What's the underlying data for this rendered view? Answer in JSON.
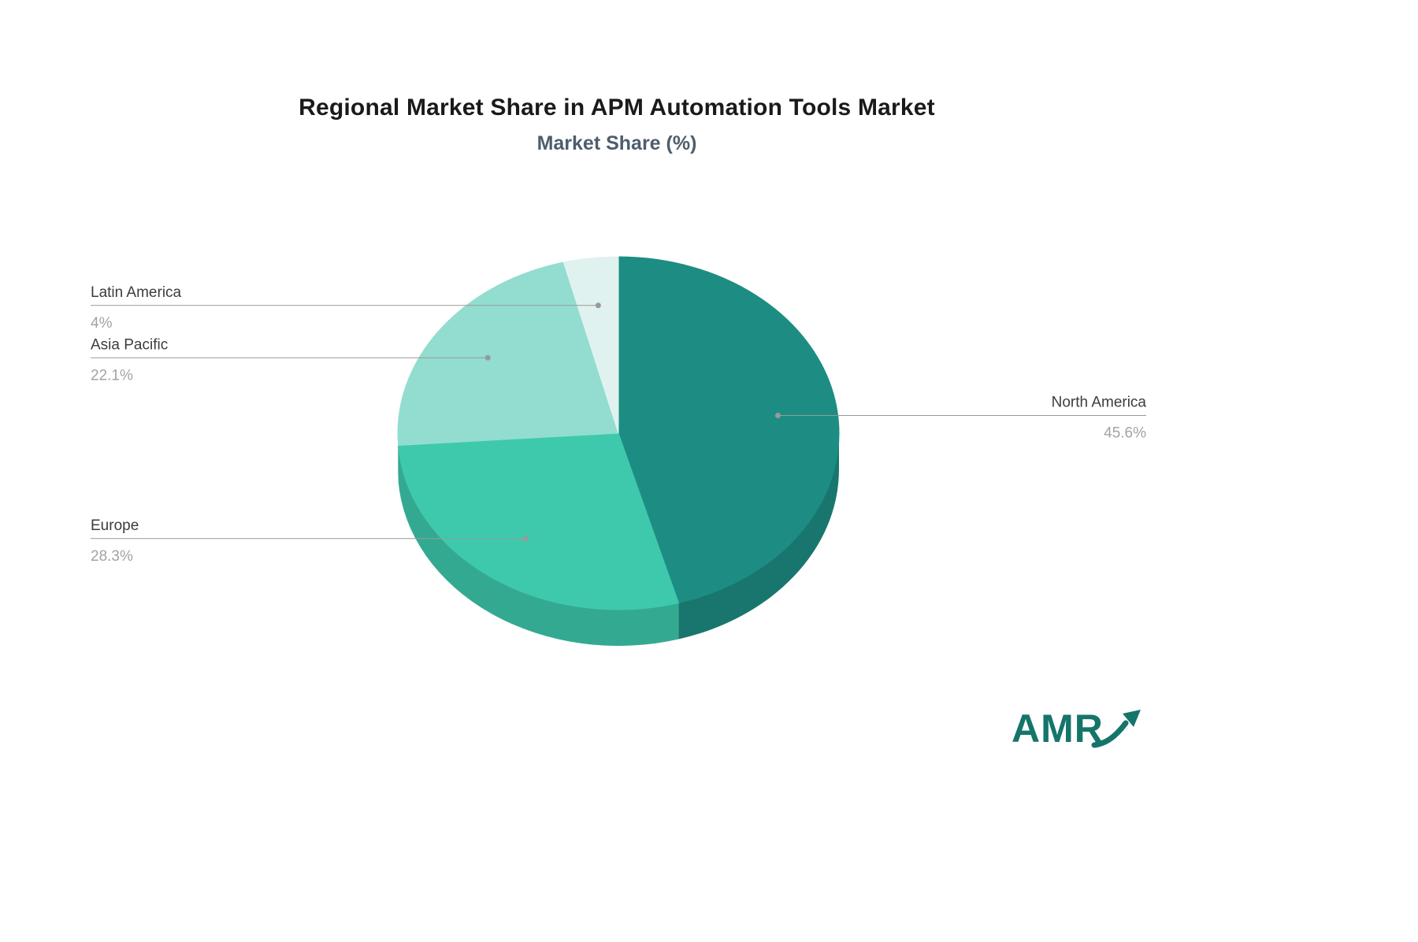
{
  "chart_data": {
    "type": "pie",
    "title": "Regional Market Share in APM Automation Tools Market",
    "subtitle": "Market Share (%)",
    "unit": "%",
    "direction": "clockwise",
    "start_angle_deg": 0,
    "effect": "3d",
    "legend_position": "none",
    "label_style": "leader-lines",
    "slices": [
      {
        "label": "North America",
        "value": 45.6,
        "display": "45.6%",
        "color": "#1d8d83"
      },
      {
        "label": "Europe",
        "value": 28.3,
        "display": "28.3%",
        "color": "#3ec9ad"
      },
      {
        "label": "Asia Pacific",
        "value": 22.1,
        "display": "22.1%",
        "color": "#92ddd0"
      },
      {
        "label": "Latin America",
        "value": 4,
        "display": "4%",
        "color": "#e0f2ef"
      }
    ]
  },
  "style": {
    "title_color": "#1a1a1a",
    "subtitle_color": "#4e5d6d",
    "label_color": "#3c3c3c",
    "value_color": "#a3a3a3",
    "line_color": "#999999",
    "logo_color": "#15756b",
    "background": "#ffffff"
  },
  "logo": {
    "text": "AMR"
  }
}
